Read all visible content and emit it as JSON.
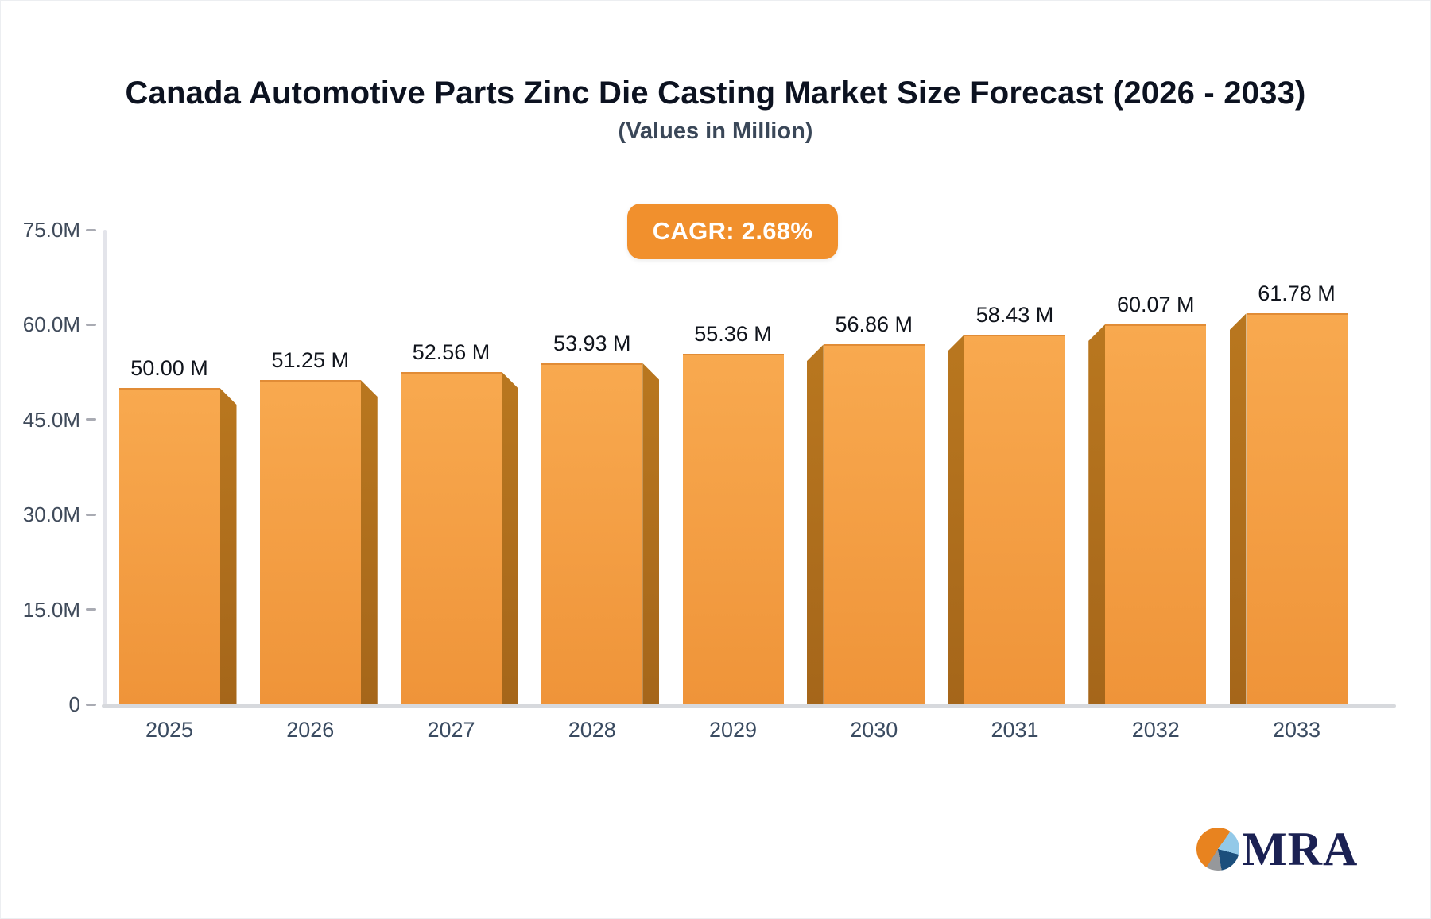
{
  "header": {
    "title": "Canada Automotive Parts Zinc Die Casting Market Size Forecast (2026 - 2033)",
    "subtitle": "(Values in Million)",
    "cagr_label": "CAGR: 2.68%"
  },
  "logo": {
    "text": "MRA",
    "icon": "pie-chart-icon"
  },
  "colors": {
    "accent_orange": "#F1902D",
    "bar_face_top": "#F8A94F",
    "bar_face_bottom": "#EF9439",
    "bar_side_top": "#B9771F",
    "bar_side_bottom": "#A5661A",
    "bar_edge": "#E18C36",
    "axis_line": "#E3E4EA",
    "baseline": "#D7D9DD",
    "tick_dash": "#A9ABB3",
    "tick_text": "#3F4A5A",
    "year_text": "#3A4B61",
    "value_text": "#10141C",
    "title_text": "#0C1220",
    "subtitle_text": "#3A4758",
    "logo_navy": "#1B2153",
    "pie_orange": "#E8831F",
    "pie_blue": "#93C9E8",
    "pie_navy": "#1C4F7C",
    "pie_gray": "#96989B"
  },
  "chart_data": {
    "type": "bar",
    "title": "Canada Automotive Parts Zinc Die Casting Market Size Forecast (2026 - 2033)",
    "subtitle": "(Values in Million)",
    "cagr_percent": 2.68,
    "unit": "Million",
    "categories": [
      "2025",
      "2026",
      "2027",
      "2028",
      "2029",
      "2030",
      "2031",
      "2032",
      "2033"
    ],
    "values": [
      50.0,
      51.25,
      52.56,
      53.93,
      55.36,
      56.86,
      58.43,
      60.07,
      61.78
    ],
    "value_labels": [
      "50.00 M",
      "51.25 M",
      "52.56 M",
      "53.93 M",
      "55.36 M",
      "56.86 M",
      "58.43 M",
      "60.07 M",
      "61.78 M"
    ],
    "ylim": [
      0,
      75
    ],
    "yticks": [
      {
        "value": 0,
        "label": "0"
      },
      {
        "value": 15,
        "label": "15.0M"
      },
      {
        "value": 30,
        "label": "30.0M"
      },
      {
        "value": 45,
        "label": "45.0M"
      },
      {
        "value": 60,
        "label": "60.0M"
      },
      {
        "value": 75,
        "label": "75.0M"
      }
    ],
    "grid": false,
    "legend": false,
    "bar_style": "3d-chamfer"
  }
}
